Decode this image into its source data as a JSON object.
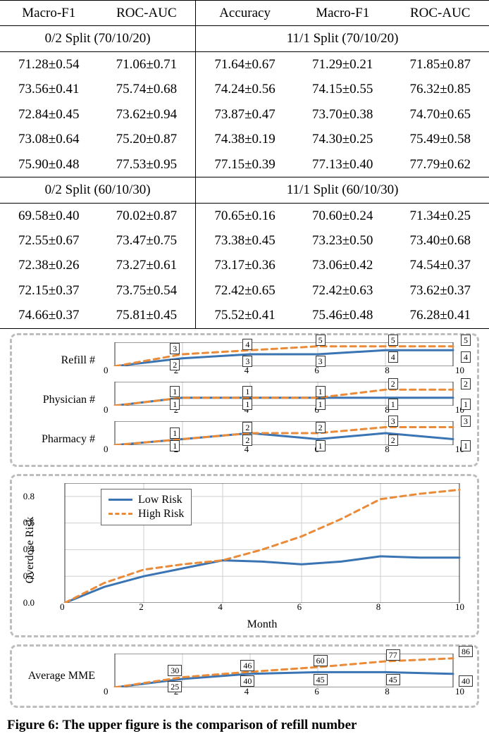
{
  "colors": {
    "low": "#3b74b3",
    "high": "#e98b39",
    "grid": "#cfcfcf",
    "axis": "#333333",
    "panel_border": "#bdbdbd",
    "box_border": "#333333"
  },
  "table": {
    "headers": [
      "Macro-F1",
      "ROC-AUC",
      "Accuracy",
      "Macro-F1",
      "ROC-AUC"
    ],
    "sections": [
      {
        "left_label": "0/2 Split (70/10/20)",
        "right_label": "11/1 Split (70/10/20)",
        "rows": [
          {
            "cells": [
              "71.28±0.54",
              "71.06±0.71",
              "71.64±0.67",
              "71.29±0.21",
              "71.85±0.87"
            ],
            "bold": false
          },
          {
            "cells": [
              "73.56±0.41",
              "75.74±0.68",
              "74.24±0.56",
              "74.15±0.55",
              "76.32±0.85"
            ],
            "bold": false
          },
          {
            "cells": [
              "72.84±0.45",
              "73.62±0.94",
              "73.87±0.47",
              "73.70±0.38",
              "74.70±0.65"
            ],
            "bold": false
          },
          {
            "cells": [
              "73.08±0.64",
              "75.20±0.87",
              "74.38±0.19",
              "74.30±0.25",
              "75.49±0.58"
            ],
            "bold": false
          },
          {
            "cells": [
              "75.90±0.48",
              "77.53±0.95",
              "77.15±0.39",
              "77.13±0.40",
              "77.79±0.62"
            ],
            "bold": true
          }
        ]
      },
      {
        "left_label": "0/2 Split (60/10/30)",
        "right_label": "11/1 Split (60/10/30)",
        "rows": [
          {
            "cells": [
              "69.58±0.40",
              "70.02±0.87",
              "70.65±0.16",
              "70.60±0.24",
              "71.34±0.25"
            ],
            "bold": false
          },
          {
            "cells": [
              "72.55±0.67",
              "73.47±0.75",
              "73.38±0.45",
              "73.23±0.50",
              "73.40±0.68"
            ],
            "bold": false
          },
          {
            "cells": [
              "72.38±0.26",
              "73.27±0.61",
              "73.17±0.36",
              "73.06±0.42",
              "74.54±0.37"
            ],
            "bold": false
          },
          {
            "cells": [
              "72.15±0.37",
              "73.75±0.54",
              "72.42±0.65",
              "72.42±0.63",
              "73.62±0.37"
            ],
            "bold": false
          },
          {
            "cells": [
              "74.66±0.37",
              "75.81±0.45",
              "75.52±0.41",
              "75.46±0.48",
              "76.28±0.41"
            ],
            "bold": true
          }
        ]
      }
    ]
  },
  "figure": {
    "x_ticks": [
      0,
      2,
      4,
      6,
      8,
      10
    ],
    "mini_panels": [
      {
        "label": "Refill #",
        "ymax": 6,
        "low": {
          "x": [
            0,
            2,
            4,
            6,
            8,
            10
          ],
          "y": [
            0,
            2,
            3,
            3,
            4,
            4
          ],
          "boxes": [
            2,
            3,
            3,
            4,
            4
          ]
        },
        "high": {
          "x": [
            0,
            2,
            4,
            6,
            8,
            10
          ],
          "y": [
            0,
            3,
            4,
            5,
            5,
            5
          ],
          "boxes": [
            3,
            4,
            5,
            5,
            5
          ]
        }
      },
      {
        "label": "Physician #",
        "ymax": 3,
        "low": {
          "x": [
            0,
            2,
            4,
            6,
            8,
            10
          ],
          "y": [
            0,
            1,
            1,
            1,
            1,
            1
          ],
          "boxes": [
            1,
            1,
            1,
            1,
            1
          ]
        },
        "high": {
          "x": [
            0,
            2,
            4,
            6,
            8,
            10
          ],
          "y": [
            0,
            1,
            1,
            1,
            2,
            2
          ],
          "boxes": [
            1,
            1,
            1,
            2,
            2
          ]
        }
      },
      {
        "label": "Pharmacy #",
        "ymax": 4,
        "low": {
          "x": [
            0,
            2,
            4,
            6,
            8,
            10
          ],
          "y": [
            0,
            1,
            2,
            1,
            2,
            1
          ],
          "boxes": [
            1,
            2,
            1,
            2,
            1
          ]
        },
        "high": {
          "x": [
            0,
            2,
            4,
            6,
            8,
            10
          ],
          "y": [
            0,
            1,
            2,
            2,
            3,
            3
          ],
          "boxes": [
            1,
            2,
            2,
            3,
            3
          ]
        }
      }
    ],
    "overdose": {
      "y_ticks": [
        0.0,
        0.2,
        0.4,
        0.6,
        0.8
      ],
      "ymax": 0.9,
      "low": {
        "x": [
          0,
          1,
          2,
          3,
          4,
          5,
          6,
          7,
          8,
          9,
          10
        ],
        "y": [
          0.0,
          0.12,
          0.2,
          0.26,
          0.32,
          0.31,
          0.29,
          0.31,
          0.35,
          0.34,
          0.34
        ]
      },
      "high": {
        "x": [
          0,
          1,
          2,
          3,
          4,
          5,
          6,
          7,
          8,
          9,
          10
        ],
        "y": [
          0.0,
          0.15,
          0.25,
          0.29,
          0.32,
          0.4,
          0.5,
          0.63,
          0.78,
          0.82,
          0.85
        ]
      },
      "xlabel": "Month",
      "ylabel": "Overdose Risk",
      "legend": {
        "low": "Low Risk",
        "high": "High Risk"
      }
    },
    "mme": {
      "label": "Average MME",
      "ymax": 100,
      "low": {
        "x": [
          0,
          2,
          4,
          6,
          8,
          10
        ],
        "y": [
          0,
          25,
          40,
          45,
          45,
          40
        ],
        "boxes": [
          25,
          40,
          45,
          45,
          40
        ]
      },
      "high": {
        "x": [
          0,
          2,
          4,
          6,
          8,
          10
        ],
        "y": [
          0,
          30,
          46,
          60,
          77,
          86
        ],
        "boxes": [
          30,
          46,
          60,
          77,
          86
        ]
      }
    },
    "caption": "Figure 6: The upper figure is the comparison of refill number"
  }
}
